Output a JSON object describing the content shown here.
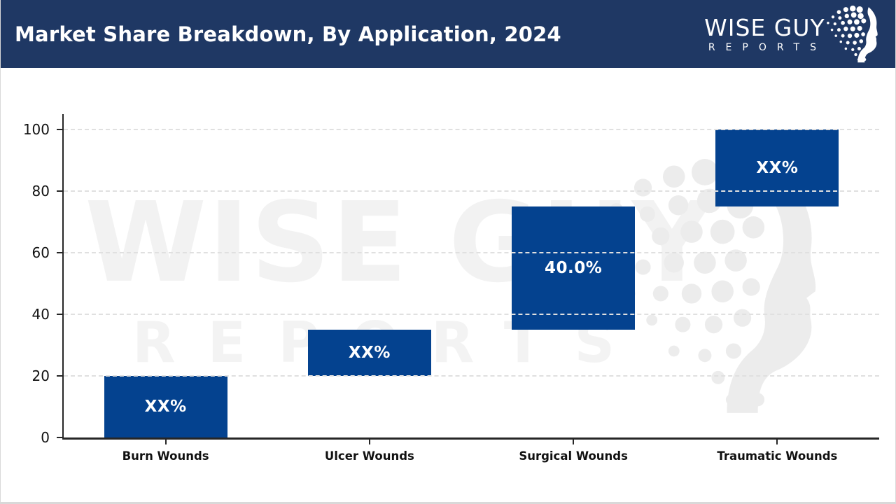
{
  "header": {
    "title": "Market Share Breakdown, By Application, 2024",
    "background": "#1f3864",
    "title_color": "#ffffff",
    "logo": {
      "primary": "WISE GUY",
      "secondary": "REPORTS"
    }
  },
  "watermark": {
    "primary": "WISE GUY",
    "secondary": "REPORTS"
  },
  "chart_data": {
    "type": "bar",
    "subtype": "waterfall",
    "title": "Market Share Breakdown, By Application, 2024",
    "categories": [
      "Burn Wounds",
      "Ulcer Wounds",
      "Surgical Wounds",
      "Traumatic Wounds"
    ],
    "segments": [
      {
        "category": "Burn Wounds",
        "start": 0,
        "end": 20,
        "label": "XX%"
      },
      {
        "category": "Ulcer Wounds",
        "start": 20,
        "end": 35,
        "label": "XX%"
      },
      {
        "category": "Surgical Wounds",
        "start": 35,
        "end": 75,
        "label": "40.0%"
      },
      {
        "category": "Traumatic Wounds",
        "start": 75,
        "end": 100,
        "label": "XX%"
      }
    ],
    "xlabel": "",
    "ylabel": "",
    "ylim": [
      0,
      100
    ],
    "yticks": [
      0,
      20,
      40,
      60,
      80,
      100
    ],
    "grid": "horizontal-dashed",
    "legend": "none",
    "bar_color": "#04428f",
    "bar_label_color": "#ffffff",
    "gridline_color": "#e0e0e0",
    "axis_color": "#262626",
    "tick_label_color": "#111111"
  }
}
